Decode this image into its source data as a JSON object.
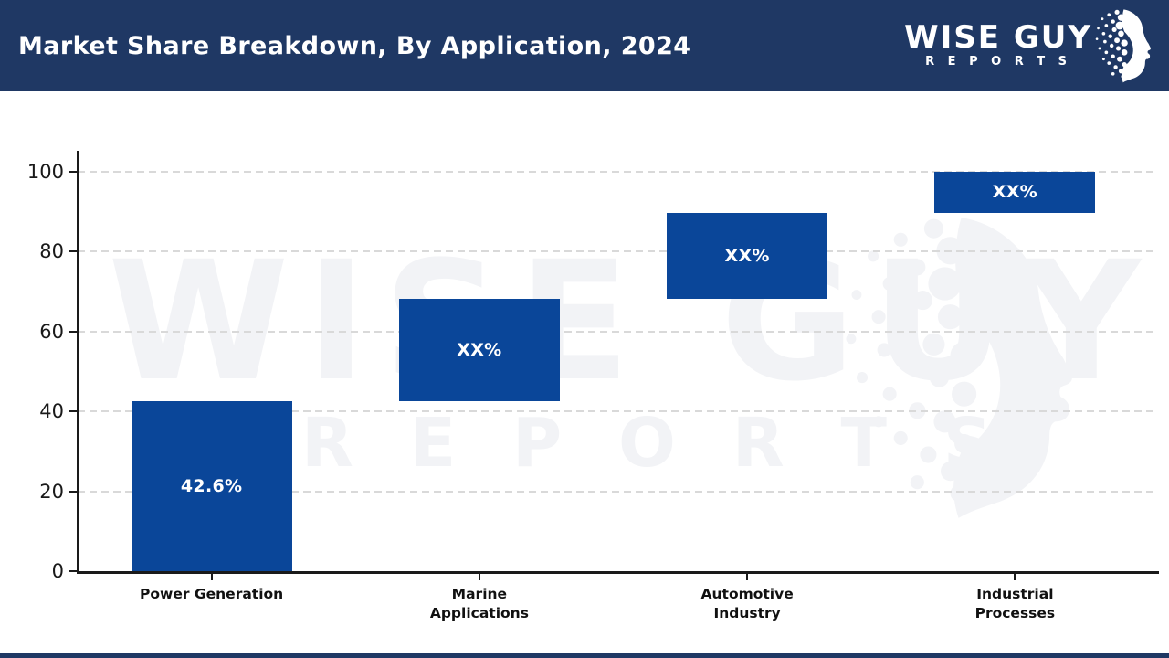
{
  "header": {
    "title": "Market Share Breakdown, By Application, 2024"
  },
  "logo": {
    "line1": "WISE GUY",
    "line2": "R E P O R T S",
    "face_icon": "dotted-face-profile-icon"
  },
  "watermark": {
    "line1": "WISE GUY",
    "line2": "R E P O R T S",
    "face_icon": "dotted-face-profile-icon"
  },
  "colors": {
    "header_bg": "#1f3864",
    "bar": "#0a4699",
    "grid": "#d9d9d9",
    "axis": "#1a1a1a",
    "watermark": "#f2f3f6",
    "bar_label_text": "#ffffff",
    "title_text": "#ffffff"
  },
  "chart_data": {
    "type": "bar",
    "subtype": "waterfall",
    "title": "Market Share Breakdown, By Application, 2024",
    "xlabel": "",
    "ylabel": "",
    "ylim": [
      0,
      100
    ],
    "yticks": [
      0,
      20,
      40,
      60,
      80,
      100
    ],
    "grid": "horizontal-dashed",
    "legend": "none",
    "categories": [
      "Power Generation",
      "Marine Applications",
      "Automotive Industry",
      "Industrial Processes"
    ],
    "category_label_lines": [
      [
        "Power Generation"
      ],
      [
        "Marine",
        "Applications"
      ],
      [
        "Automotive",
        "Industry"
      ],
      [
        "Industrial",
        "Processes"
      ]
    ],
    "segments": [
      {
        "category": "Power Generation",
        "start": 0,
        "end": 42.6,
        "label": "42.6%"
      },
      {
        "category": "Marine Applications",
        "start": 42.6,
        "end": 68.2,
        "label": "XX%"
      },
      {
        "category": "Automotive Industry",
        "start": 68.2,
        "end": 89.8,
        "label": "XX%"
      },
      {
        "category": "Industrial Processes",
        "start": 89.8,
        "end": 100,
        "label": "XX%"
      }
    ]
  }
}
